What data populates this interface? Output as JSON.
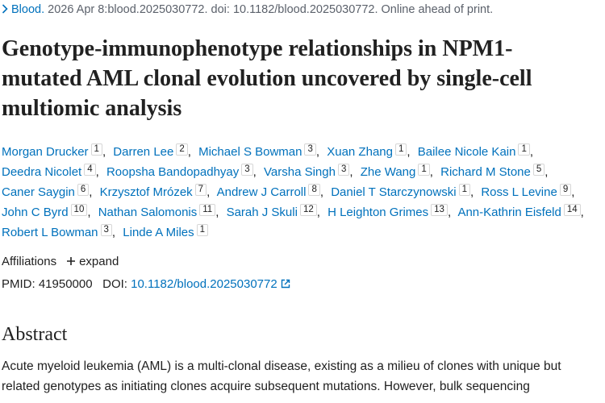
{
  "citation": {
    "journal": "Blood.",
    "details": "2026 Apr 8:blood.2025030772. doi: 10.1182/blood.2025030772. Online ahead of print."
  },
  "title": "Genotype-immunophenotype relationships in NPM1-mutated AML clonal evolution uncovered by single-cell multiomic analysis",
  "author_separator": ",",
  "authors": [
    {
      "name": "Morgan Drucker",
      "aff": 1
    },
    {
      "name": "Darren Lee",
      "aff": 2
    },
    {
      "name": "Michael S Bowman",
      "aff": 3
    },
    {
      "name": "Xuan Zhang",
      "aff": 1
    },
    {
      "name": "Bailee Nicole Kain",
      "aff": 1
    },
    {
      "name": "Deedra Nicolet",
      "aff": 4
    },
    {
      "name": "Roopsha Bandopadhyay",
      "aff": 3
    },
    {
      "name": "Varsha Singh",
      "aff": 3
    },
    {
      "name": "Zhe Wang",
      "aff": 1
    },
    {
      "name": "Richard M Stone",
      "aff": 5
    },
    {
      "name": "Caner Saygin",
      "aff": 6
    },
    {
      "name": "Krzysztof Mrózek",
      "aff": 7
    },
    {
      "name": "Andrew J Carroll",
      "aff": 8
    },
    {
      "name": "Daniel T Starczynowski",
      "aff": 1
    },
    {
      "name": "Ross L Levine",
      "aff": 9
    },
    {
      "name": "John C Byrd",
      "aff": 10
    },
    {
      "name": "Nathan Salomonis",
      "aff": 11
    },
    {
      "name": "Sarah J Skuli",
      "aff": 12
    },
    {
      "name": "H Leighton Grimes",
      "aff": 13
    },
    {
      "name": "Ann-Kathrin Eisfeld",
      "aff": 14
    },
    {
      "name": "Robert L Bowman",
      "aff": 3
    },
    {
      "name": "Linde A Miles",
      "aff": 1
    }
  ],
  "affiliations": {
    "label": "Affiliations",
    "toggle": "expand"
  },
  "identifiers": {
    "pmid_label": "PMID:",
    "pmid": "41950000",
    "doi_label": "DOI:",
    "doi": "10.1182/blood.2025030772"
  },
  "abstract": {
    "heading": "Abstract",
    "text": "Acute myeloid leukemia (AML) is a multi-clonal disease, existing as a milieu of clones with unique but related genotypes as initiating clones acquire subsequent mutations. However, bulk sequencing"
  }
}
